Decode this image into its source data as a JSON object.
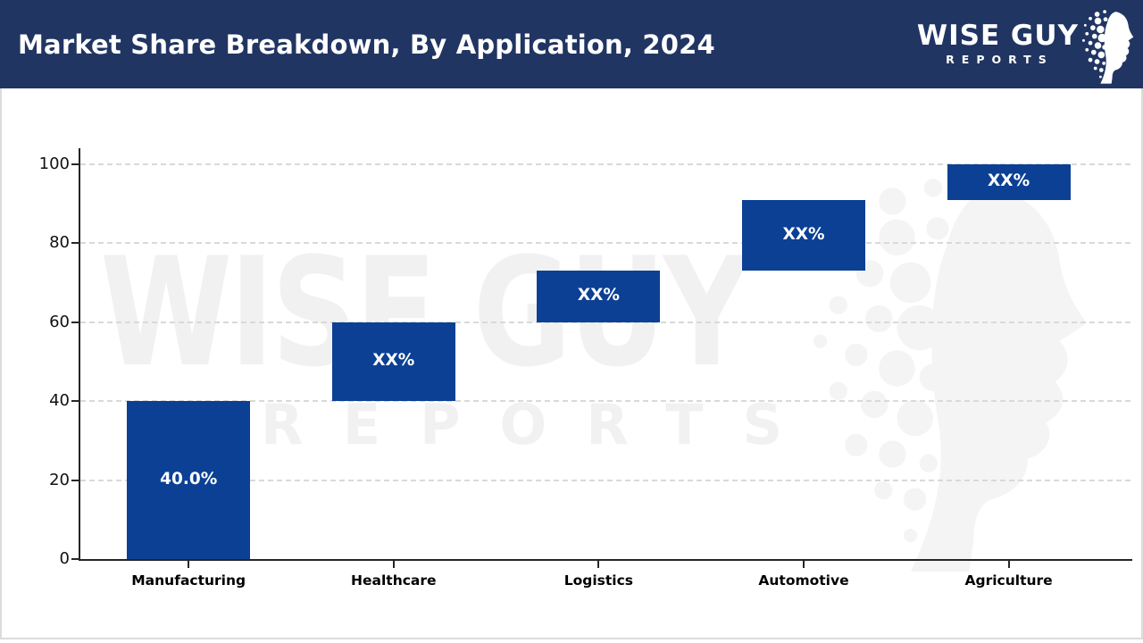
{
  "header": {
    "title": "Market Share Breakdown, By Application, 2024",
    "bg_color": "#213563"
  },
  "logo": {
    "name": "WISE GUY",
    "tagline": "REPORTS"
  },
  "watermark": {
    "brand": "WISE GUY",
    "tagline": "REPORTS"
  },
  "chart_data": {
    "type": "bar",
    "subtype": "waterfall",
    "title": "Market Share Breakdown, By Application, 2024",
    "categories": [
      "Manufacturing",
      "Healthcare",
      "Logistics",
      "Automotive",
      "Agriculture"
    ],
    "segments": [
      {
        "category": "Manufacturing",
        "start": 0,
        "end": 40,
        "value": 40.0,
        "label": "40.0%"
      },
      {
        "category": "Healthcare",
        "start": 40,
        "end": 60,
        "value": 20,
        "label": "XX%"
      },
      {
        "category": "Logistics",
        "start": 60,
        "end": 73,
        "value": 13,
        "label": "XX%"
      },
      {
        "category": "Automotive",
        "start": 73,
        "end": 91,
        "value": 18,
        "label": "XX%"
      },
      {
        "category": "Agriculture",
        "start": 91,
        "end": 100,
        "value": 9,
        "label": "XX%"
      }
    ],
    "yticks": [
      0,
      20,
      40,
      60,
      80,
      100
    ],
    "ylim": [
      0,
      103
    ],
    "xlabel": "",
    "ylabel": "",
    "grid": "horizontal-dashed",
    "legend": "none",
    "bar_color": "#0b4094",
    "grid_color": "#d9d9d9",
    "axis_color": "#262626",
    "label_color_inside": "#ffffff"
  }
}
